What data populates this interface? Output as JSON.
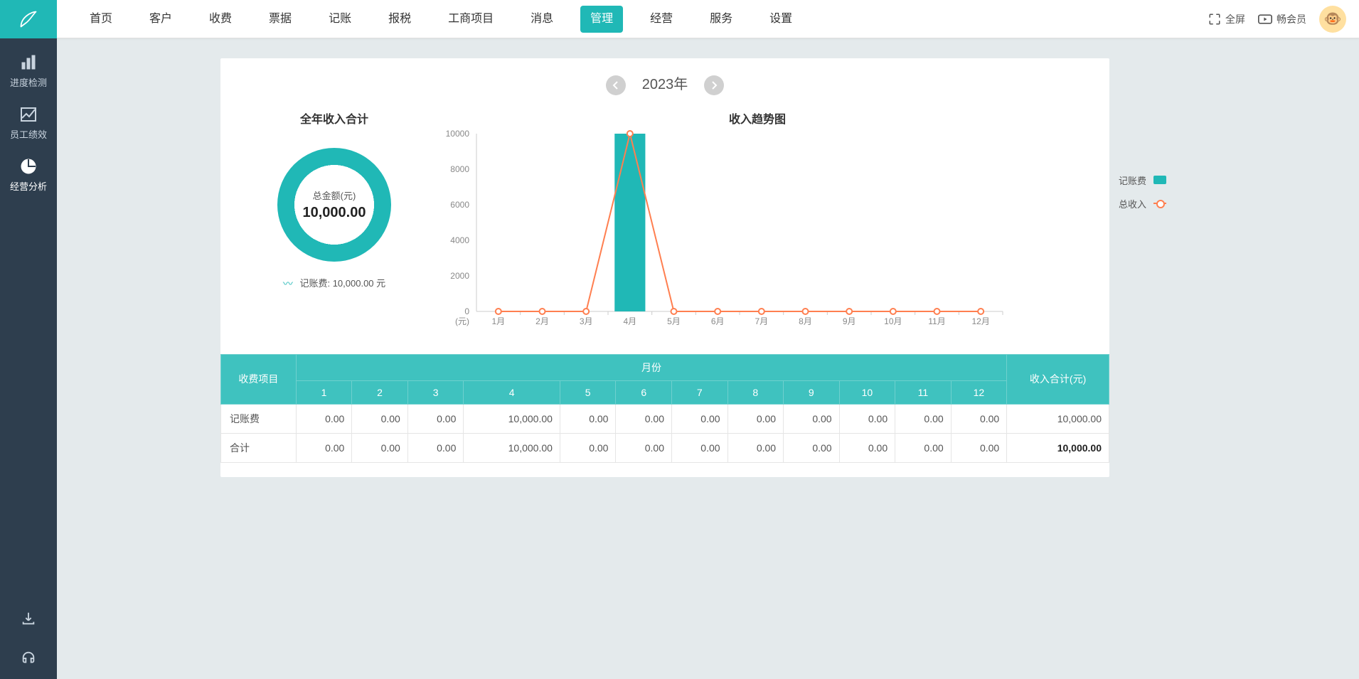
{
  "topnav": {
    "items": [
      "首页",
      "客户",
      "收费",
      "票据",
      "记账",
      "报税",
      "工商项目",
      "消息",
      "管理",
      "经营",
      "服务",
      "设置"
    ],
    "active_index": 8,
    "fullscreen": "全屏",
    "member": "畅会员"
  },
  "sidebar": {
    "items": [
      {
        "label": "进度检测",
        "icon": "bar-chart-icon"
      },
      {
        "label": "员工绩效",
        "icon": "line-chart-icon"
      },
      {
        "label": "经营分析",
        "icon": "pie-chart-icon"
      }
    ],
    "active_index": 2
  },
  "year_selector": {
    "year": "2023年"
  },
  "donut": {
    "title": "全年收入合计",
    "sub_label": "总金额(元)",
    "value": "10,000.00",
    "legend_label": "记账费:",
    "legend_value": "10,000.00 元",
    "ring_color": "#20b8b6"
  },
  "chart": {
    "title": "收入趋势图",
    "y_unit": "(元)",
    "y_ticks": [
      0,
      2000,
      4000,
      6000,
      8000,
      10000
    ],
    "x_labels": [
      "1月",
      "2月",
      "3月",
      "4月",
      "5月",
      "6月",
      "7月",
      "8月",
      "9月",
      "10月",
      "11月",
      "12月"
    ],
    "bar_values": [
      0,
      0,
      0,
      10000,
      0,
      0,
      0,
      0,
      0,
      0,
      0,
      0
    ],
    "line_values": [
      0,
      0,
      0,
      10000,
      0,
      0,
      0,
      0,
      0,
      0,
      0,
      0
    ],
    "bar_color": "#20b8b6",
    "line_color": "#ff7f50",
    "grid_color": "#cccccc",
    "legend": {
      "bar": "记账费",
      "line": "总收入"
    }
  },
  "table": {
    "row_header": "收费项目",
    "group_header": "月份",
    "total_col": "收入合计(元)",
    "months": [
      "1",
      "2",
      "3",
      "4",
      "5",
      "6",
      "7",
      "8",
      "9",
      "10",
      "11",
      "12"
    ],
    "rows": [
      {
        "label": "记账费",
        "cells": [
          "0.00",
          "0.00",
          "0.00",
          "10,000.00",
          "0.00",
          "0.00",
          "0.00",
          "0.00",
          "0.00",
          "0.00",
          "0.00",
          "0.00"
        ],
        "total": "10,000.00"
      }
    ],
    "total_row": {
      "label": "合计",
      "cells": [
        "0.00",
        "0.00",
        "0.00",
        "10,000.00",
        "0.00",
        "0.00",
        "0.00",
        "0.00",
        "0.00",
        "0.00",
        "0.00",
        "0.00"
      ],
      "total": "10,000.00"
    }
  }
}
